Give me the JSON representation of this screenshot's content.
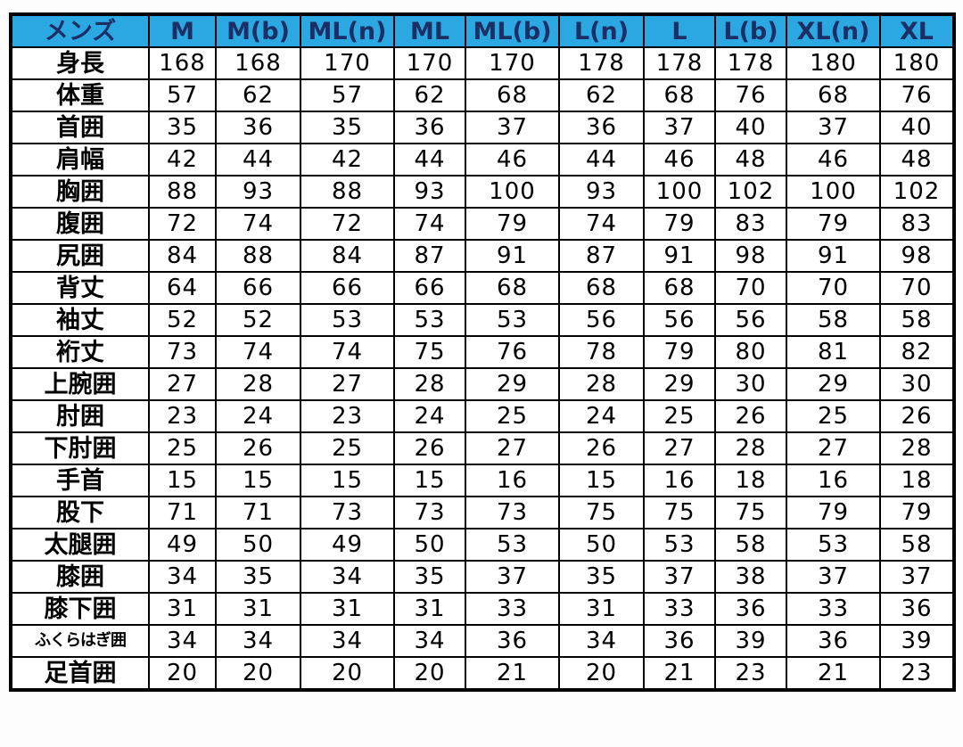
{
  "colors": {
    "header_bg": "#2BA7E1",
    "header_text": "#1B2F66",
    "border": "#000000",
    "cell_bg": "#FFFFFF",
    "cell_text": "#000000"
  },
  "chart_data": {
    "type": "table",
    "title": "メンズ",
    "columns": [
      "メンズ",
      "M",
      "M(b)",
      "ML(n)",
      "ML",
      "ML(b)",
      "L(n)",
      "L",
      "L(b)",
      "XL(n)",
      "XL"
    ],
    "rows": [
      {
        "label": "身長",
        "values": [
          168,
          168,
          170,
          170,
          170,
          178,
          178,
          178,
          180,
          180
        ]
      },
      {
        "label": "体重",
        "values": [
          57,
          62,
          57,
          62,
          68,
          62,
          68,
          76,
          68,
          76
        ]
      },
      {
        "label": "首囲",
        "values": [
          35,
          36,
          35,
          36,
          37,
          36,
          37,
          40,
          37,
          40
        ]
      },
      {
        "label": "肩幅",
        "values": [
          42,
          44,
          42,
          44,
          46,
          44,
          46,
          48,
          46,
          48
        ]
      },
      {
        "label": "胸囲",
        "values": [
          88,
          93,
          88,
          93,
          100,
          93,
          100,
          102,
          100,
          102
        ]
      },
      {
        "label": "腹囲",
        "values": [
          72,
          74,
          72,
          74,
          79,
          74,
          79,
          83,
          79,
          83
        ]
      },
      {
        "label": "尻囲",
        "values": [
          84,
          88,
          84,
          87,
          91,
          87,
          91,
          98,
          91,
          98
        ]
      },
      {
        "label": "背丈",
        "values": [
          64,
          66,
          66,
          66,
          68,
          68,
          68,
          70,
          70,
          70
        ]
      },
      {
        "label": "袖丈",
        "values": [
          52,
          52,
          53,
          53,
          53,
          56,
          56,
          56,
          58,
          58
        ]
      },
      {
        "label": "裄丈",
        "values": [
          73,
          74,
          74,
          75,
          76,
          78,
          79,
          80,
          81,
          82
        ]
      },
      {
        "label": "上腕囲",
        "values": [
          27,
          28,
          27,
          28,
          29,
          28,
          29,
          30,
          29,
          30
        ]
      },
      {
        "label": "肘囲",
        "values": [
          23,
          24,
          23,
          24,
          25,
          24,
          25,
          26,
          25,
          26
        ]
      },
      {
        "label": "下肘囲",
        "values": [
          25,
          26,
          25,
          26,
          27,
          26,
          27,
          28,
          27,
          28
        ]
      },
      {
        "label": "手首",
        "values": [
          15,
          15,
          15,
          15,
          16,
          15,
          16,
          18,
          16,
          18
        ]
      },
      {
        "label": "股下",
        "values": [
          71,
          71,
          73,
          73,
          73,
          75,
          75,
          75,
          79,
          79
        ]
      },
      {
        "label": "太腿囲",
        "values": [
          49,
          50,
          49,
          50,
          53,
          50,
          53,
          58,
          53,
          58
        ]
      },
      {
        "label": "膝囲",
        "values": [
          34,
          35,
          34,
          35,
          37,
          35,
          37,
          38,
          37,
          37
        ]
      },
      {
        "label": "膝下囲",
        "values": [
          31,
          31,
          31,
          31,
          33,
          31,
          33,
          36,
          33,
          36
        ]
      },
      {
        "label": "ふくらはぎ囲",
        "values": [
          34,
          34,
          34,
          34,
          36,
          34,
          36,
          39,
          36,
          39
        ]
      },
      {
        "label": "足首囲",
        "values": [
          20,
          20,
          20,
          20,
          21,
          20,
          21,
          23,
          21,
          23
        ]
      }
    ]
  }
}
